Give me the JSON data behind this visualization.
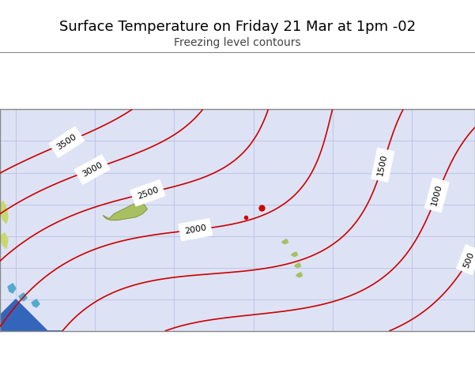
{
  "title": "Surface Temperature on Friday 21 Mar at 1pm -02",
  "subtitle": "Freezing level contours",
  "title_fontsize": 13,
  "subtitle_fontsize": 10,
  "bg_color": "#dde3f5",
  "map_bg": "#dde3f5",
  "grid_color": "#c0c8e8",
  "border_color": "#888888",
  "contour_color": "#cc0000",
  "contour_levels": [
    500,
    1000,
    1500,
    2000,
    2500,
    3000,
    3500
  ],
  "label_fontsize": 8,
  "fig_width": 6.01,
  "fig_height": 4.91,
  "dpi": 100,
  "land_colors": {
    "south_georgia": "#c8d870",
    "sandwich": "#c8d870",
    "antarctica": "#4488cc",
    "falklands": "#c8d870"
  },
  "xlim": [
    -45,
    -15
  ],
  "ylim": [
    -62,
    -48
  ]
}
